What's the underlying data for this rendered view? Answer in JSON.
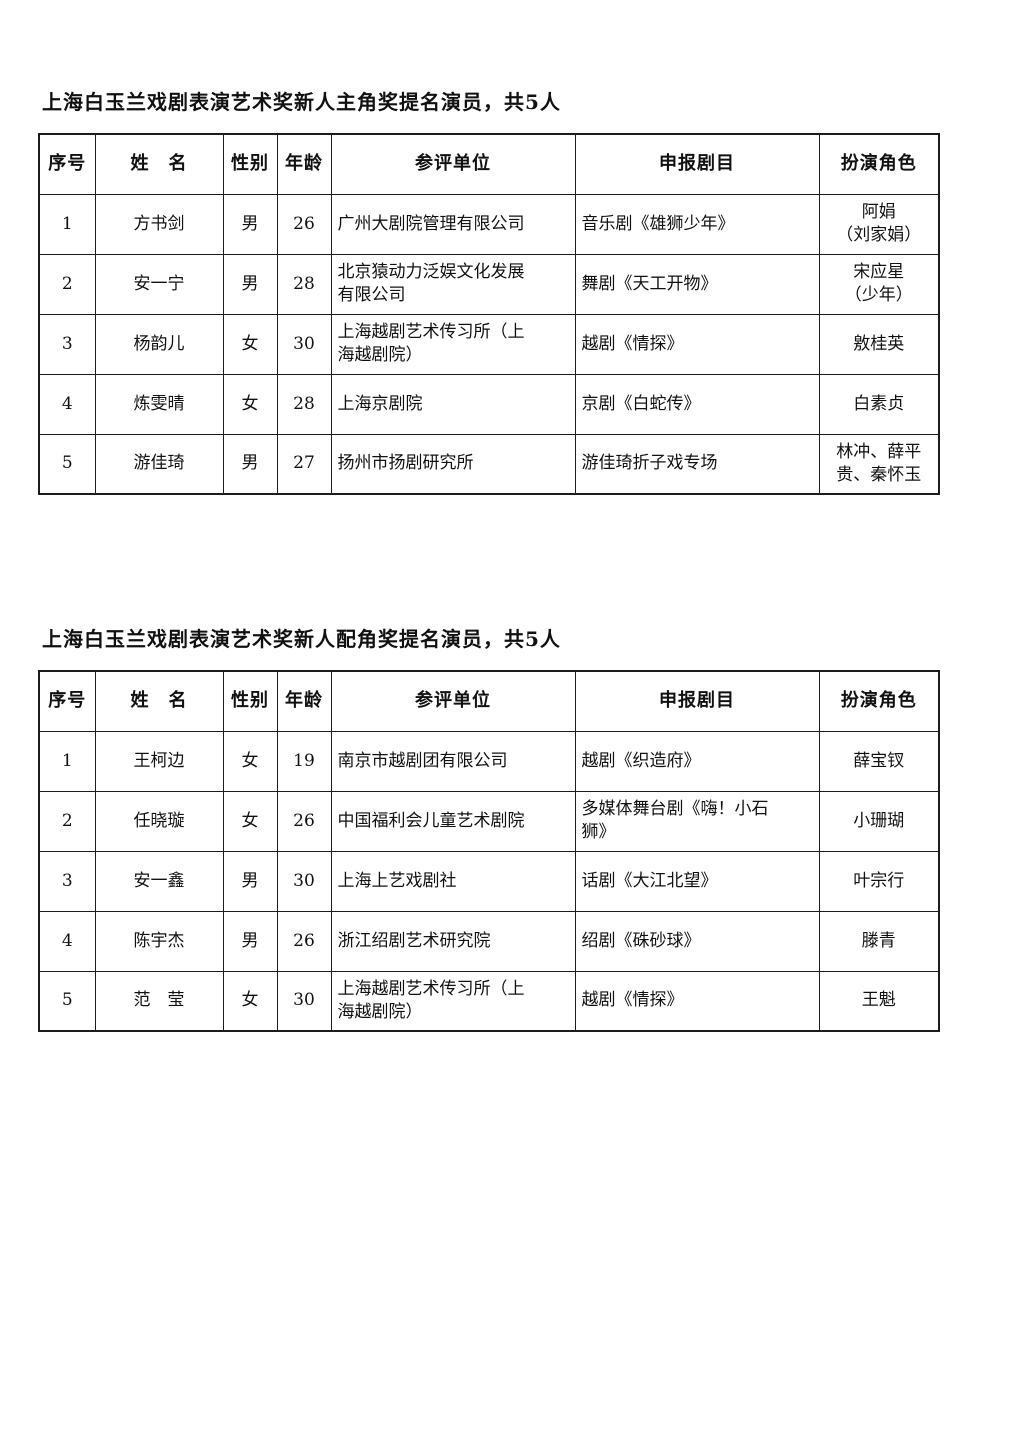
{
  "document": {
    "sections": [
      {
        "title": "上海白玉兰戏剧表演艺术奖新人主角奖提名演员，共5人",
        "headers": [
          "序号",
          "姓　名",
          "性别",
          "年龄",
          "参评单位",
          "申报剧目",
          "扮演角色"
        ],
        "rows": [
          [
            "1",
            "方书剑",
            "男",
            "26",
            "广州大剧院管理有限公司",
            "音乐剧《雄狮少年》",
            "阿娟\n（刘家娟）"
          ],
          [
            "2",
            "安一宁",
            "男",
            "28",
            "北京猿动力泛娱文化发展\n有限公司",
            "舞剧《天工开物》",
            "宋应星\n（少年）"
          ],
          [
            "3",
            "杨韵儿",
            "女",
            "30",
            "上海越剧艺术传习所（上\n海越剧院）",
            "越剧《情探》",
            "敫桂英"
          ],
          [
            "4",
            "炼雯晴",
            "女",
            "28",
            "上海京剧院",
            "京剧《白蛇传》",
            "白素贞"
          ],
          [
            "5",
            "游佳琦",
            "男",
            "27",
            "扬州市扬剧研究所",
            "游佳琦折子戏专场",
            "林冲、薛平\n贵、秦怀玉"
          ]
        ]
      },
      {
        "title": "上海白玉兰戏剧表演艺术奖新人配角奖提名演员，共5人",
        "headers": [
          "序号",
          "姓　名",
          "性别",
          "年龄",
          "参评单位",
          "申报剧目",
          "扮演角色"
        ],
        "rows": [
          [
            "1",
            "王柯边",
            "女",
            "19",
            "南京市越剧团有限公司",
            "越剧《织造府》",
            "薛宝钗"
          ],
          [
            "2",
            "任晓璇",
            "女",
            "26",
            "中国福利会儿童艺术剧院",
            "多媒体舞台剧《嗨！小石\n狮》",
            "小珊瑚"
          ],
          [
            "3",
            "安一鑫",
            "男",
            "30",
            "上海上艺戏剧社",
            "话剧《大江北望》",
            "叶宗行"
          ],
          [
            "4",
            "陈宇杰",
            "男",
            "26",
            "浙江绍剧艺术研究院",
            "绍剧《硃砂球》",
            "滕青"
          ],
          [
            "5",
            "范　莹",
            "女",
            "30",
            "上海越剧艺术传习所（上\n海越剧院）",
            "越剧《情探》",
            "王魁"
          ]
        ]
      }
    ]
  }
}
